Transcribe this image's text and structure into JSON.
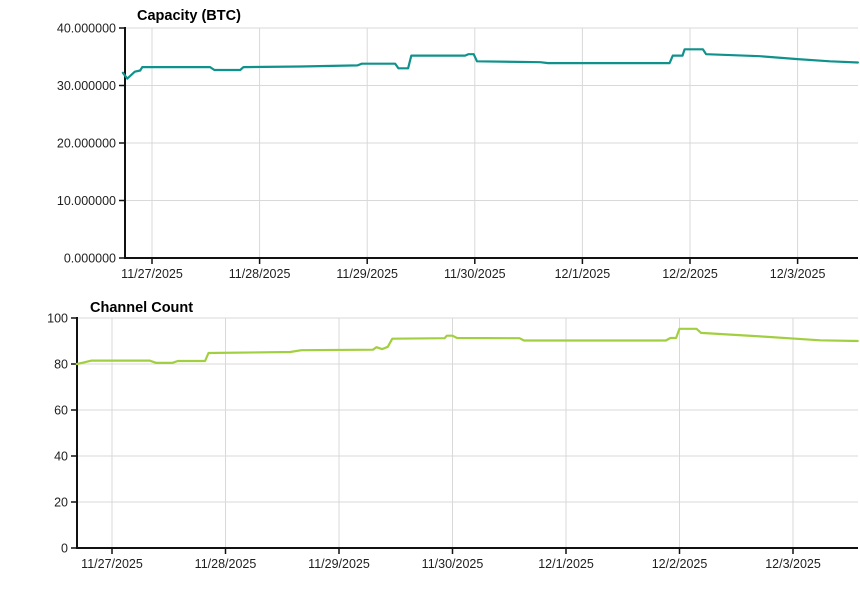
{
  "page": {
    "background_color": "#ffffff"
  },
  "colors": {
    "grid": "#d9d9d9",
    "axis": "#111111",
    "tick_text": "#1f1f1f",
    "capacity_line": "#10928c",
    "channel_line": "#a2cf3f"
  },
  "chart_data": [
    {
      "type": "line",
      "title": "Capacity (BTC)",
      "ylabel": "",
      "xlabel": "",
      "ylim": [
        0,
        40
      ],
      "y_ticks": [
        0,
        10,
        20,
        30,
        40
      ],
      "y_tick_labels": [
        "0.000000",
        "10.000000",
        "20.000000",
        "30.000000",
        "40.000000"
      ],
      "x_tick_labels": [
        "11/27/2025",
        "11/28/2025",
        "11/29/2025",
        "11/30/2025",
        "12/1/2025",
        "12/2/2025",
        "12/3/2025"
      ],
      "xlim_days": [
        -0.251,
        6.561
      ],
      "grid": true,
      "legend": "none",
      "line_color": "#10928c",
      "series": [
        {
          "name": "Capacity",
          "points": [
            [
              -0.27,
              32.2
            ],
            [
              -0.23,
              31.2
            ],
            [
              -0.16,
              32.4
            ],
            [
              -0.11,
              32.6
            ],
            [
              -0.09,
              33.2
            ],
            [
              0.54,
              33.2
            ],
            [
              0.58,
              32.7
            ],
            [
              0.82,
              32.7
            ],
            [
              0.85,
              33.2
            ],
            [
              1.38,
              33.3
            ],
            [
              1.91,
              33.5
            ],
            [
              1.95,
              33.8
            ],
            [
              2.26,
              33.8
            ],
            [
              2.29,
              33.0
            ],
            [
              2.38,
              33.0
            ],
            [
              2.41,
              35.2
            ],
            [
              2.91,
              35.2
            ],
            [
              2.94,
              35.45
            ],
            [
              2.99,
              35.45
            ],
            [
              3.02,
              34.2
            ],
            [
              3.61,
              34.05
            ],
            [
              3.68,
              33.9
            ],
            [
              4.81,
              33.9
            ],
            [
              4.84,
              35.2
            ],
            [
              4.93,
              35.2
            ],
            [
              4.95,
              36.3
            ],
            [
              5.12,
              36.3
            ],
            [
              5.15,
              35.45
            ],
            [
              5.65,
              35.1
            ],
            [
              6.0,
              34.6
            ],
            [
              6.3,
              34.2
            ],
            [
              6.56,
              34.0
            ]
          ]
        }
      ]
    },
    {
      "type": "line",
      "title": "Channel Count",
      "ylabel": "",
      "xlabel": "",
      "ylim": [
        0,
        100
      ],
      "y_ticks": [
        0,
        20,
        40,
        60,
        80,
        100
      ],
      "y_tick_labels": [
        "0",
        "20",
        "40",
        "60",
        "80",
        "100"
      ],
      "x_tick_labels": [
        "11/27/2025",
        "11/28/2025",
        "11/29/2025",
        "11/30/2025",
        "12/1/2025",
        "12/2/2025",
        "12/3/2025"
      ],
      "xlim_days": [
        -0.308,
        6.573
      ],
      "grid": true,
      "legend": "none",
      "line_color": "#a2cf3f",
      "series": [
        {
          "name": "Channel Count",
          "points": [
            [
              -0.31,
              80.0
            ],
            [
              -0.28,
              80.3
            ],
            [
              -0.18,
              81.5
            ],
            [
              0.33,
              81.5
            ],
            [
              0.39,
              80.5
            ],
            [
              0.53,
              80.5
            ],
            [
              0.58,
              81.3
            ],
            [
              0.82,
              81.3
            ],
            [
              0.85,
              84.8
            ],
            [
              1.57,
              85.2
            ],
            [
              1.67,
              86.0
            ],
            [
              2.3,
              86.2
            ],
            [
              2.33,
              87.3
            ],
            [
              2.38,
              86.5
            ],
            [
              2.43,
              87.5
            ],
            [
              2.47,
              91.0
            ],
            [
              2.93,
              91.2
            ],
            [
              2.95,
              92.3
            ],
            [
              3.0,
              92.3
            ],
            [
              3.04,
              91.3
            ],
            [
              3.59,
              91.2
            ],
            [
              3.63,
              90.2
            ],
            [
              4.88,
              90.2
            ],
            [
              4.92,
              91.3
            ],
            [
              4.97,
              91.3
            ],
            [
              5.0,
              95.3
            ],
            [
              5.15,
              95.3
            ],
            [
              5.19,
              93.5
            ],
            [
              5.71,
              92.0
            ],
            [
              6.24,
              90.3
            ],
            [
              6.57,
              90.0
            ]
          ]
        }
      ]
    }
  ]
}
